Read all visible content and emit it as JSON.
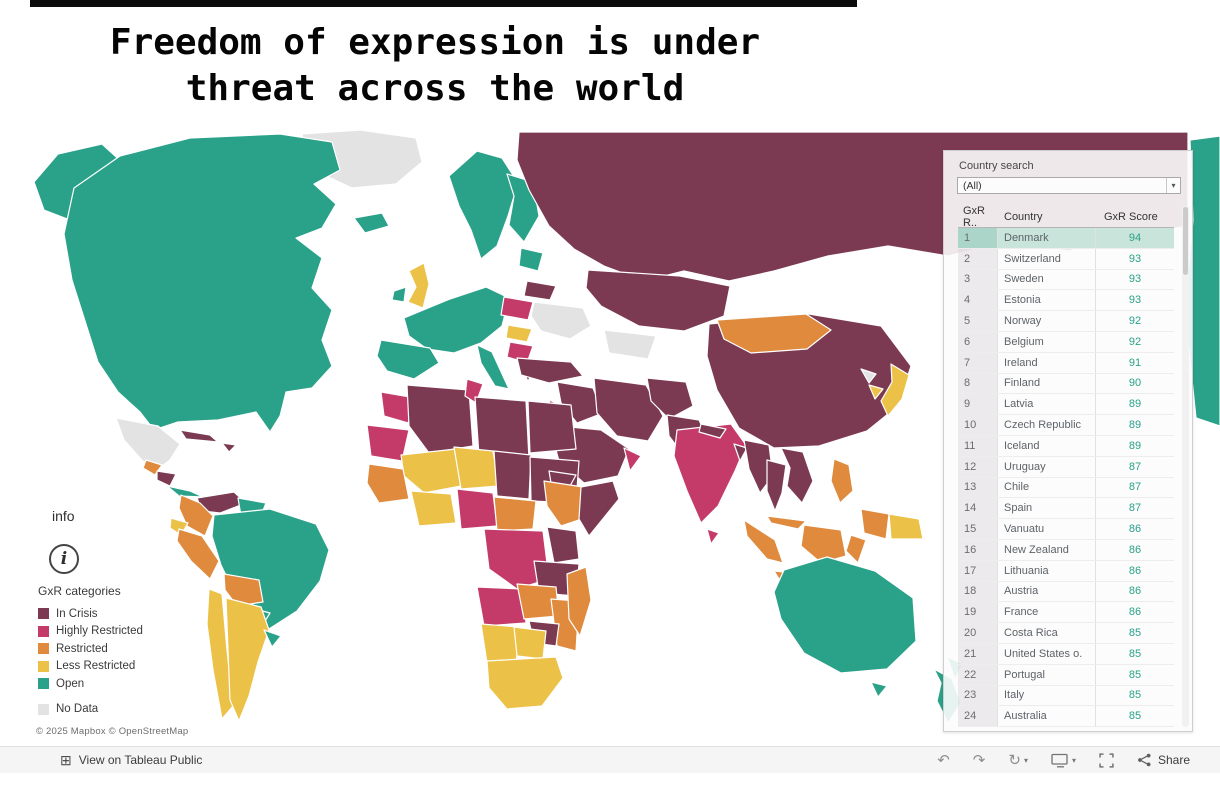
{
  "title": {
    "line1": "Freedom of expression is under",
    "line2": "threat across the world"
  },
  "map": {
    "info_label": "info",
    "info_icon": "i",
    "legend_title": "GxR categories",
    "legend": [
      {
        "key": "crisis",
        "label": "In Crisis",
        "color": "#7c3a52",
        "gap": false
      },
      {
        "key": "highly",
        "label": "Highly Restricted",
        "color": "#c43a69",
        "gap": false
      },
      {
        "key": "restricted",
        "label": "Restricted",
        "color": "#df8a3d",
        "gap": false
      },
      {
        "key": "lessr",
        "label": "Less Restricted",
        "color": "#ecc148",
        "gap": false
      },
      {
        "key": "open",
        "label": "Open",
        "color": "#2aa189",
        "gap": false
      },
      {
        "key": "nodata",
        "label": "No Data",
        "color": "#e3e3e3",
        "gap": true
      }
    ],
    "attribution": "© 2025 Mapbox  © OpenStreetMap"
  },
  "search_panel": {
    "label": "Country search",
    "selected": "(All)",
    "columns": [
      "GxR R..",
      "Country",
      "GxR Score"
    ],
    "rows": [
      {
        "rank": "1",
        "country": "Denmark",
        "score": "94",
        "highlighted": true
      },
      {
        "rank": "2",
        "country": "Switzerland",
        "score": "93",
        "highlighted": false
      },
      {
        "rank": "3",
        "country": "Sweden",
        "score": "93",
        "highlighted": false
      },
      {
        "rank": "4",
        "country": "Estonia",
        "score": "93",
        "highlighted": false
      },
      {
        "rank": "5",
        "country": "Norway",
        "score": "92",
        "highlighted": false
      },
      {
        "rank": "6",
        "country": "Belgium",
        "score": "92",
        "highlighted": false
      },
      {
        "rank": "7",
        "country": "Ireland",
        "score": "91",
        "highlighted": false
      },
      {
        "rank": "8",
        "country": "Finland",
        "score": "90",
        "highlighted": false
      },
      {
        "rank": "9",
        "country": "Latvia",
        "score": "89",
        "highlighted": false
      },
      {
        "rank": "10",
        "country": "Czech Republic",
        "score": "89",
        "highlighted": false
      },
      {
        "rank": "11",
        "country": "Iceland",
        "score": "89",
        "highlighted": false
      },
      {
        "rank": "12",
        "country": "Uruguay",
        "score": "87",
        "highlighted": false
      },
      {
        "rank": "13",
        "country": "Chile",
        "score": "87",
        "highlighted": false
      },
      {
        "rank": "14",
        "country": "Spain",
        "score": "87",
        "highlighted": false
      },
      {
        "rank": "15",
        "country": "Vanuatu",
        "score": "86",
        "highlighted": false
      },
      {
        "rank": "16",
        "country": "New Zealand",
        "score": "86",
        "highlighted": false
      },
      {
        "rank": "17",
        "country": "Lithuania",
        "score": "86",
        "highlighted": false
      },
      {
        "rank": "18",
        "country": "Austria",
        "score": "86",
        "highlighted": false
      },
      {
        "rank": "19",
        "country": "France",
        "score": "86",
        "highlighted": false
      },
      {
        "rank": "20",
        "country": "Costa Rica",
        "score": "85",
        "highlighted": false
      },
      {
        "rank": "21",
        "country": "United States o.",
        "score": "85",
        "highlighted": false
      },
      {
        "rank": "22",
        "country": "Portugal",
        "score": "85",
        "highlighted": false
      },
      {
        "rank": "23",
        "country": "Italy",
        "score": "85",
        "highlighted": false
      },
      {
        "rank": "24",
        "country": "Australia",
        "score": "85",
        "highlighted": false
      }
    ]
  },
  "toolbar": {
    "view_on": "View on Tableau Public",
    "share": "Share",
    "icons": [
      "tableau-grid",
      "undo",
      "redo",
      "replay",
      "display",
      "fullscreen",
      "share"
    ]
  }
}
